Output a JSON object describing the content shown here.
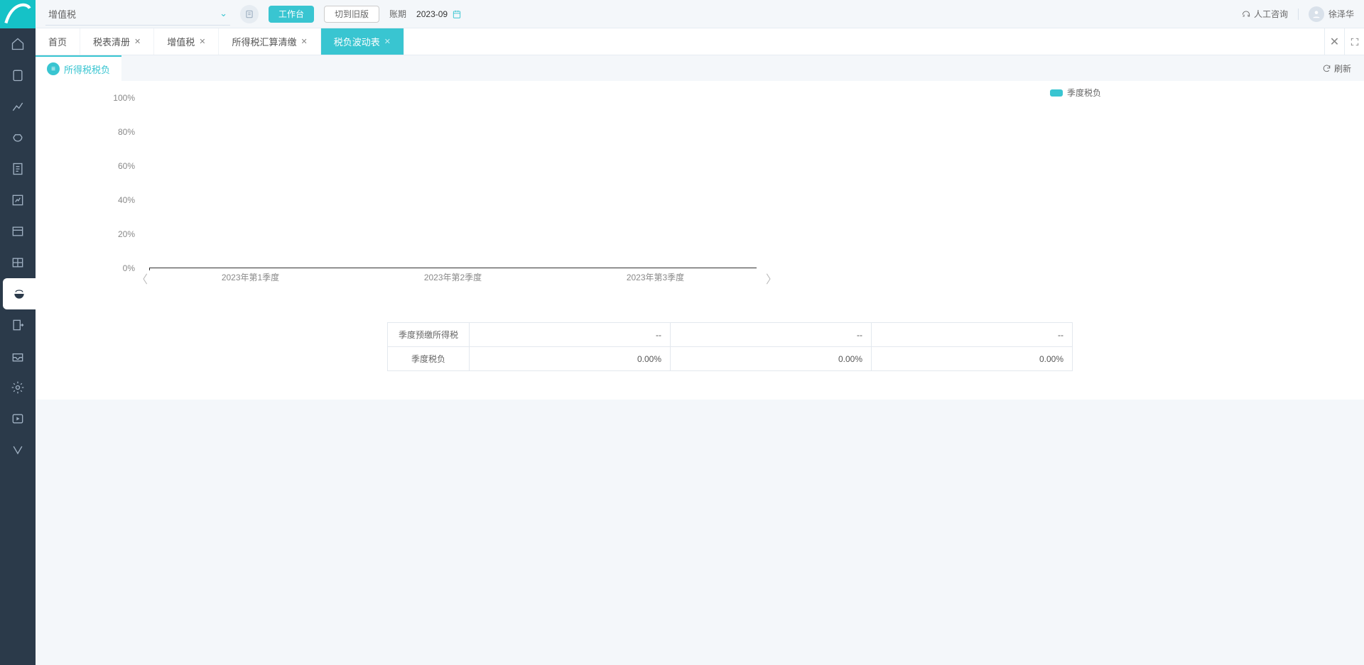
{
  "accent": "#39c5d1",
  "header": {
    "dropdown_label": "增值税",
    "workspace_label": "工作台",
    "switch_label": "切到旧版",
    "period_prefix": "账期",
    "period_value": "2023-09",
    "support_label": "人工咨询",
    "username": "徐泽华"
  },
  "tabs": [
    {
      "label": "首页",
      "closable": false,
      "active": false
    },
    {
      "label": "税表清册",
      "closable": true,
      "active": false
    },
    {
      "label": "增值税",
      "closable": true,
      "active": false
    },
    {
      "label": "所得税汇算清缴",
      "closable": true,
      "active": false
    },
    {
      "label": "税负波动表",
      "closable": true,
      "active": true
    }
  ],
  "subtab": {
    "label": "所得税税负"
  },
  "refresh_label": "刷新",
  "chart": {
    "type": "bar",
    "legend_label": "季度税负",
    "legend_color": "#39c5d1",
    "y_ticks": [
      "0%",
      "20%",
      "40%",
      "60%",
      "80%",
      "100%"
    ],
    "ylim": [
      0,
      100
    ],
    "categories": [
      "2023年第1季度",
      "2023年第2季度",
      "2023年第3季度"
    ],
    "series_values": [
      0,
      0,
      0
    ],
    "tick_color": "#888888",
    "axis_color": "#333333",
    "grid_color": "#e3e8ee",
    "background_color": "#ffffff",
    "label_fontsize": 12
  },
  "table": {
    "row_headers": [
      "季度预缴所得税",
      "季度税负"
    ],
    "rows": [
      [
        "--",
        "--",
        "--"
      ],
      [
        "0.00%",
        "0.00%",
        "0.00%"
      ]
    ]
  },
  "sidebar_icons": [
    "home-icon",
    "clipboard-icon",
    "chart-icon",
    "moneybag-icon",
    "receipt-icon",
    "graph-icon",
    "form-icon",
    "table-icon",
    "bowl-icon",
    "doc-out-icon",
    "inbox-icon",
    "gear-icon",
    "play-icon",
    "v-icon"
  ]
}
